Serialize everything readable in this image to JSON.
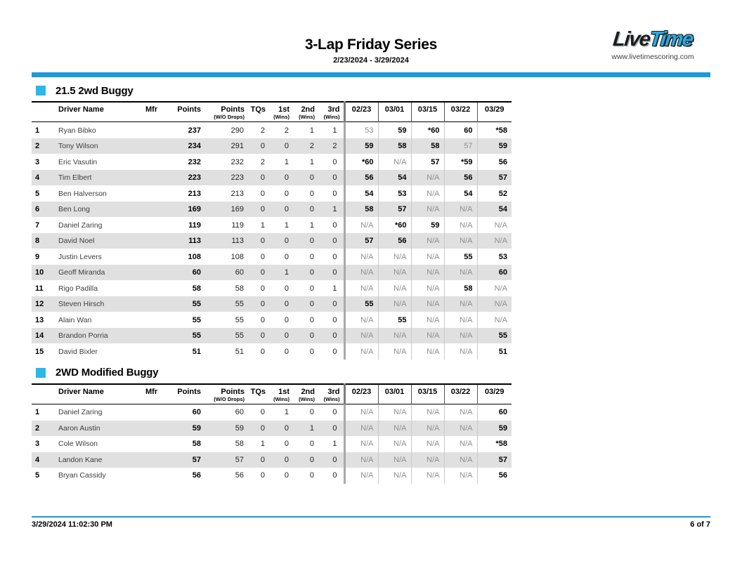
{
  "header": {
    "title": "3-Lap Friday Series",
    "date_range": "2/23/2024 - 3/29/2024",
    "logo": {
      "live": "Live",
      "time": "Time",
      "website": "www.livetimescoring.com"
    }
  },
  "colors": {
    "accent_bar": "#1b9ad7",
    "section_swatch": "#29b8ec",
    "row_stripe": "#e0e0e0",
    "muted_text": "#8f8f8f"
  },
  "columns": {
    "driver": "Driver Name",
    "mfr": "Mfr",
    "points": "Points",
    "points_wo": "Points",
    "points_wo_sub": "(W/O Drops)",
    "tqs": "TQs",
    "first": "1st",
    "second": "2nd",
    "third": "3rd",
    "wins_sub": "(Wins)",
    "races": [
      "02/23",
      "03/01",
      "03/15",
      "03/22",
      "03/29"
    ]
  },
  "sections": [
    {
      "title": "21.5 2wd Buggy",
      "rows": [
        {
          "pos": "1",
          "driver": "Ryan Bibko",
          "mfr": "",
          "points": "237",
          "points_wo": "290",
          "tqs": "2",
          "wins1": "2",
          "wins2": "1",
          "wins3": "1",
          "races": [
            {
              "v": "53",
              "muted": true
            },
            {
              "v": "59"
            },
            {
              "v": "*60"
            },
            {
              "v": "60"
            },
            {
              "v": "*58"
            }
          ]
        },
        {
          "pos": "2",
          "driver": "Tony Wilson",
          "mfr": "",
          "points": "234",
          "points_wo": "291",
          "tqs": "0",
          "wins1": "0",
          "wins2": "2",
          "wins3": "2",
          "races": [
            {
              "v": "59"
            },
            {
              "v": "58"
            },
            {
              "v": "58"
            },
            {
              "v": "57",
              "muted": true
            },
            {
              "v": "59"
            }
          ]
        },
        {
          "pos": "3",
          "driver": "Eric Vasutin",
          "mfr": "",
          "points": "232",
          "points_wo": "232",
          "tqs": "2",
          "wins1": "1",
          "wins2": "1",
          "wins3": "0",
          "races": [
            {
              "v": "*60"
            },
            {
              "v": "N/A",
              "muted": true
            },
            {
              "v": "57"
            },
            {
              "v": "*59"
            },
            {
              "v": "56"
            }
          ]
        },
        {
          "pos": "4",
          "driver": "Tim Elbert",
          "mfr": "",
          "points": "223",
          "points_wo": "223",
          "tqs": "0",
          "wins1": "0",
          "wins2": "0",
          "wins3": "0",
          "races": [
            {
              "v": "56"
            },
            {
              "v": "54"
            },
            {
              "v": "N/A",
              "muted": true
            },
            {
              "v": "56"
            },
            {
              "v": "57"
            }
          ]
        },
        {
          "pos": "5",
          "driver": "Ben Halverson",
          "mfr": "",
          "points": "213",
          "points_wo": "213",
          "tqs": "0",
          "wins1": "0",
          "wins2": "0",
          "wins3": "0",
          "races": [
            {
              "v": "54"
            },
            {
              "v": "53"
            },
            {
              "v": "N/A",
              "muted": true
            },
            {
              "v": "54"
            },
            {
              "v": "52"
            }
          ]
        },
        {
          "pos": "6",
          "driver": "Ben Long",
          "mfr": "",
          "points": "169",
          "points_wo": "169",
          "tqs": "0",
          "wins1": "0",
          "wins2": "0",
          "wins3": "1",
          "races": [
            {
              "v": "58"
            },
            {
              "v": "57"
            },
            {
              "v": "N/A",
              "muted": true
            },
            {
              "v": "N/A",
              "muted": true
            },
            {
              "v": "54"
            }
          ]
        },
        {
          "pos": "7",
          "driver": "Daniel Zaring",
          "mfr": "",
          "points": "119",
          "points_wo": "119",
          "tqs": "1",
          "wins1": "1",
          "wins2": "1",
          "wins3": "0",
          "races": [
            {
              "v": "N/A",
              "muted": true
            },
            {
              "v": "*60"
            },
            {
              "v": "59"
            },
            {
              "v": "N/A",
              "muted": true
            },
            {
              "v": "N/A",
              "muted": true
            }
          ]
        },
        {
          "pos": "8",
          "driver": "David Noel",
          "mfr": "",
          "points": "113",
          "points_wo": "113",
          "tqs": "0",
          "wins1": "0",
          "wins2": "0",
          "wins3": "0",
          "races": [
            {
              "v": "57"
            },
            {
              "v": "56"
            },
            {
              "v": "N/A",
              "muted": true
            },
            {
              "v": "N/A",
              "muted": true
            },
            {
              "v": "N/A",
              "muted": true
            }
          ]
        },
        {
          "pos": "9",
          "driver": "Justin Levers",
          "mfr": "",
          "points": "108",
          "points_wo": "108",
          "tqs": "0",
          "wins1": "0",
          "wins2": "0",
          "wins3": "0",
          "races": [
            {
              "v": "N/A",
              "muted": true
            },
            {
              "v": "N/A",
              "muted": true
            },
            {
              "v": "N/A",
              "muted": true
            },
            {
              "v": "55"
            },
            {
              "v": "53"
            }
          ]
        },
        {
          "pos": "10",
          "driver": "Geoff Miranda",
          "mfr": "",
          "points": "60",
          "points_wo": "60",
          "tqs": "0",
          "wins1": "1",
          "wins2": "0",
          "wins3": "0",
          "races": [
            {
              "v": "N/A",
              "muted": true
            },
            {
              "v": "N/A",
              "muted": true
            },
            {
              "v": "N/A",
              "muted": true
            },
            {
              "v": "N/A",
              "muted": true
            },
            {
              "v": "60"
            }
          ]
        },
        {
          "pos": "11",
          "driver": "Rigo Padilla",
          "mfr": "",
          "points": "58",
          "points_wo": "58",
          "tqs": "0",
          "wins1": "0",
          "wins2": "0",
          "wins3": "1",
          "races": [
            {
              "v": "N/A",
              "muted": true
            },
            {
              "v": "N/A",
              "muted": true
            },
            {
              "v": "N/A",
              "muted": true
            },
            {
              "v": "58"
            },
            {
              "v": "N/A",
              "muted": true
            }
          ]
        },
        {
          "pos": "12",
          "driver": "Steven Hirsch",
          "mfr": "",
          "points": "55",
          "points_wo": "55",
          "tqs": "0",
          "wins1": "0",
          "wins2": "0",
          "wins3": "0",
          "races": [
            {
              "v": "55"
            },
            {
              "v": "N/A",
              "muted": true
            },
            {
              "v": "N/A",
              "muted": true
            },
            {
              "v": "N/A",
              "muted": true
            },
            {
              "v": "N/A",
              "muted": true
            }
          ]
        },
        {
          "pos": "13",
          "driver": "Alain Wan",
          "mfr": "",
          "points": "55",
          "points_wo": "55",
          "tqs": "0",
          "wins1": "0",
          "wins2": "0",
          "wins3": "0",
          "races": [
            {
              "v": "N/A",
              "muted": true
            },
            {
              "v": "55"
            },
            {
              "v": "N/A",
              "muted": true
            },
            {
              "v": "N/A",
              "muted": true
            },
            {
              "v": "N/A",
              "muted": true
            }
          ]
        },
        {
          "pos": "14",
          "driver": "Brandon Porria",
          "mfr": "",
          "points": "55",
          "points_wo": "55",
          "tqs": "0",
          "wins1": "0",
          "wins2": "0",
          "wins3": "0",
          "races": [
            {
              "v": "N/A",
              "muted": true
            },
            {
              "v": "N/A",
              "muted": true
            },
            {
              "v": "N/A",
              "muted": true
            },
            {
              "v": "N/A",
              "muted": true
            },
            {
              "v": "55"
            }
          ]
        },
        {
          "pos": "15",
          "driver": "David Bixler",
          "mfr": "",
          "points": "51",
          "points_wo": "51",
          "tqs": "0",
          "wins1": "0",
          "wins2": "0",
          "wins3": "0",
          "races": [
            {
              "v": "N/A",
              "muted": true
            },
            {
              "v": "N/A",
              "muted": true
            },
            {
              "v": "N/A",
              "muted": true
            },
            {
              "v": "N/A",
              "muted": true
            },
            {
              "v": "51"
            }
          ]
        }
      ]
    },
    {
      "title": "2WD Modified Buggy",
      "rows": [
        {
          "pos": "1",
          "driver": "Daniel Zaring",
          "mfr": "",
          "points": "60",
          "points_wo": "60",
          "tqs": "0",
          "wins1": "1",
          "wins2": "0",
          "wins3": "0",
          "races": [
            {
              "v": "N/A",
              "muted": true
            },
            {
              "v": "N/A",
              "muted": true
            },
            {
              "v": "N/A",
              "muted": true
            },
            {
              "v": "N/A",
              "muted": true
            },
            {
              "v": "60"
            }
          ]
        },
        {
          "pos": "2",
          "driver": "Aaron Austin",
          "mfr": "",
          "points": "59",
          "points_wo": "59",
          "tqs": "0",
          "wins1": "0",
          "wins2": "1",
          "wins3": "0",
          "races": [
            {
              "v": "N/A",
              "muted": true
            },
            {
              "v": "N/A",
              "muted": true
            },
            {
              "v": "N/A",
              "muted": true
            },
            {
              "v": "N/A",
              "muted": true
            },
            {
              "v": "59"
            }
          ]
        },
        {
          "pos": "3",
          "driver": "Cole Wilson",
          "mfr": "",
          "points": "58",
          "points_wo": "58",
          "tqs": "1",
          "wins1": "0",
          "wins2": "0",
          "wins3": "1",
          "races": [
            {
              "v": "N/A",
              "muted": true
            },
            {
              "v": "N/A",
              "muted": true
            },
            {
              "v": "N/A",
              "muted": true
            },
            {
              "v": "N/A",
              "muted": true
            },
            {
              "v": "*58"
            }
          ]
        },
        {
          "pos": "4",
          "driver": "Landon Kane",
          "mfr": "",
          "points": "57",
          "points_wo": "57",
          "tqs": "0",
          "wins1": "0",
          "wins2": "0",
          "wins3": "0",
          "races": [
            {
              "v": "N/A",
              "muted": true
            },
            {
              "v": "N/A",
              "muted": true
            },
            {
              "v": "N/A",
              "muted": true
            },
            {
              "v": "N/A",
              "muted": true
            },
            {
              "v": "57"
            }
          ]
        },
        {
          "pos": "5",
          "driver": "Bryan Cassidy",
          "mfr": "",
          "points": "56",
          "points_wo": "56",
          "tqs": "0",
          "wins1": "0",
          "wins2": "0",
          "wins3": "0",
          "races": [
            {
              "v": "N/A",
              "muted": true
            },
            {
              "v": "N/A",
              "muted": true
            },
            {
              "v": "N/A",
              "muted": true
            },
            {
              "v": "N/A",
              "muted": true
            },
            {
              "v": "56"
            }
          ]
        }
      ]
    }
  ],
  "footer": {
    "timestamp": "3/29/2024 11:02:30 PM",
    "page": "6 of 7"
  }
}
